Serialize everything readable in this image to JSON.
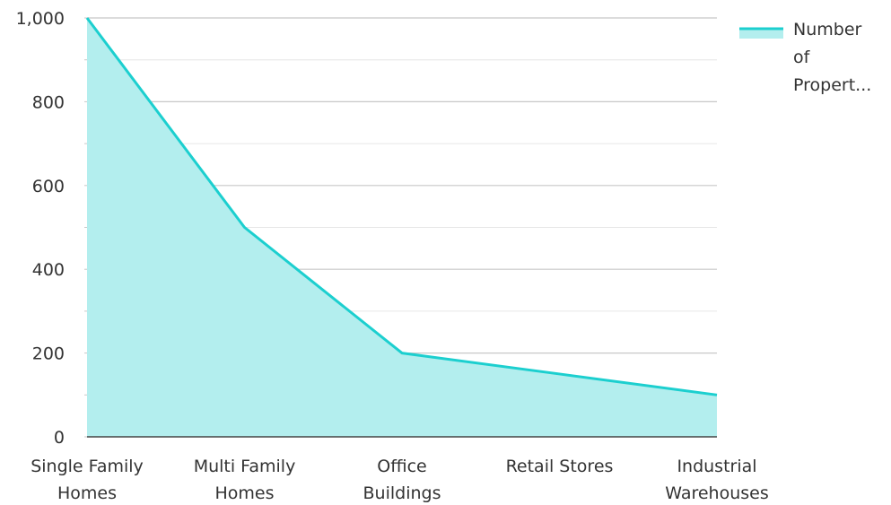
{
  "chart_data": {
    "type": "area",
    "categories": [
      [
        "Single Family",
        "Homes"
      ],
      [
        "Multi Family",
        "Homes"
      ],
      [
        "Office",
        "Buildings"
      ],
      [
        "Retail Stores"
      ],
      [
        "Industrial",
        "Warehouses"
      ]
    ],
    "series": [
      {
        "name": "Number of Propert...",
        "legend_lines": [
          "Number",
          "of",
          "Propert..."
        ],
        "values": [
          1000,
          500,
          200,
          150,
          100
        ]
      }
    ],
    "yticks": [
      "0",
      "200",
      "400",
      "600",
      "800",
      "1,000"
    ],
    "ylim": [
      0,
      1000
    ],
    "grid": true,
    "legend_position": "top-right",
    "colors": {
      "line": "#1ccfcf",
      "fill": "#b3eeee",
      "grid_major": "#c8c8c8",
      "grid_minor": "#e6e6e6",
      "axis": "#444444"
    }
  }
}
